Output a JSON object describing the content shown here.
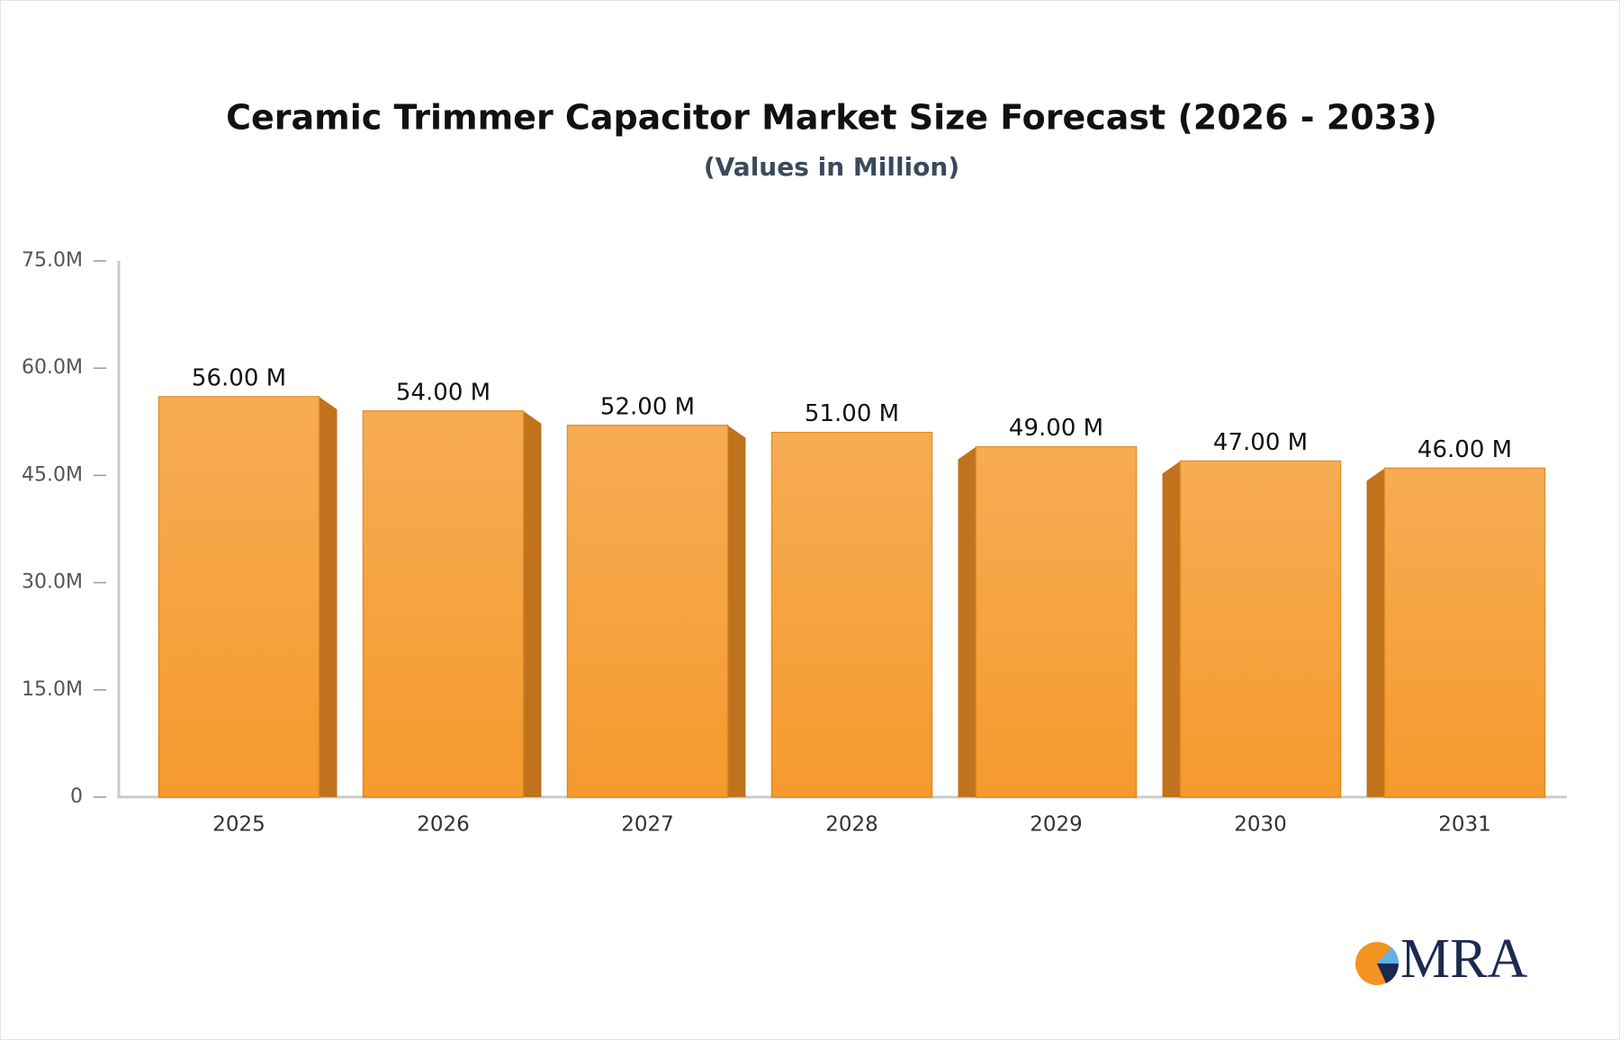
{
  "chart_data": {
    "type": "bar",
    "title": "Ceramic Trimmer Capacitor Market Size Forecast (2026 - 2033)",
    "subtitle": "(Values in Million)",
    "categories": [
      "2025",
      "2026",
      "2027",
      "2028",
      "2029",
      "2030",
      "2031"
    ],
    "values": [
      56,
      54,
      52,
      51,
      49,
      47,
      46
    ],
    "value_labels": [
      "56.00 M",
      "54.00 M",
      "52.00 M",
      "51.00 M",
      "49.00 M",
      "47.00 M",
      "46.00 M"
    ],
    "color": "#f59a2e",
    "ylim": [
      0,
      75
    ],
    "yticks": [
      0,
      {
        "value": 15,
        "label": "15.0M"
      },
      {
        "value": 30,
        "label": "30.0M"
      },
      {
        "value": 45,
        "label": "45.0M"
      },
      {
        "value": 60,
        "label": "60.0M"
      },
      {
        "value": 75,
        "label": "75.0M"
      }
    ],
    "grid": false
  },
  "logo": {
    "text": "MRA"
  }
}
